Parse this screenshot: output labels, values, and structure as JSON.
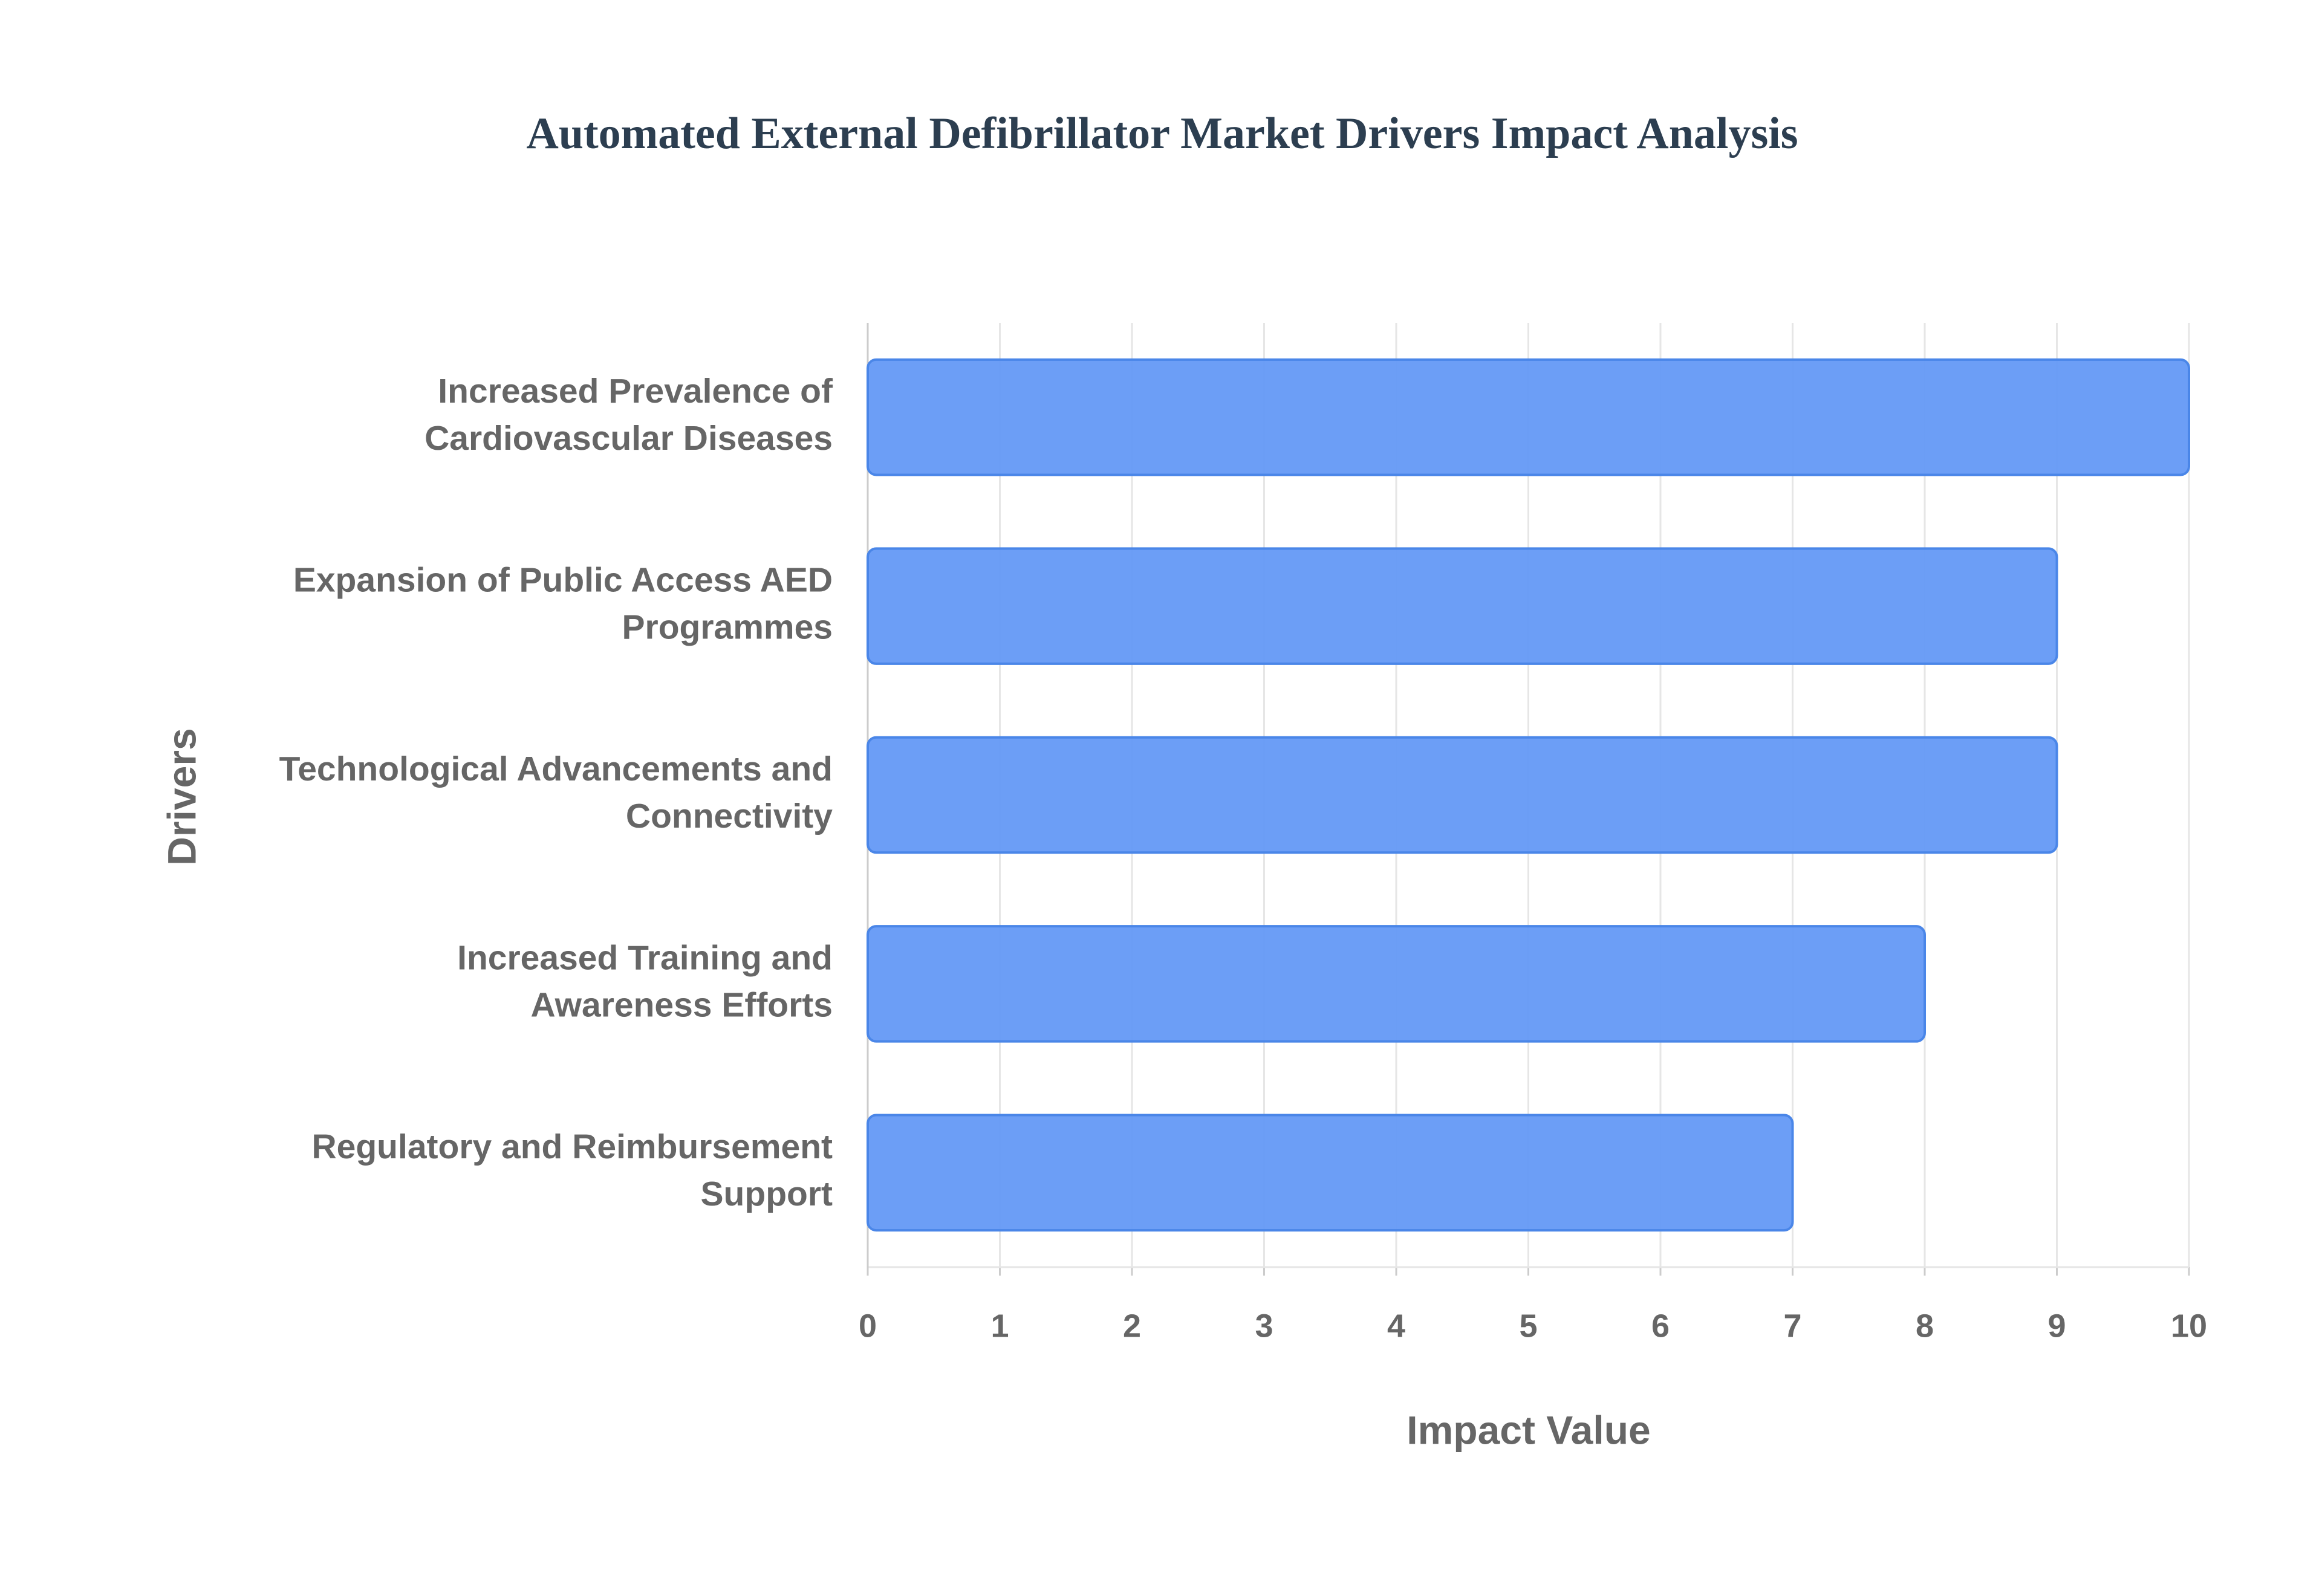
{
  "chart_data": {
    "type": "bar",
    "orientation": "horizontal",
    "title": "Automated External Defibrillator Market Drivers Impact Analysis",
    "x_label": "Impact Value",
    "y_label": "Drivers",
    "categories": [
      "Increased Prevalence of Cardiovascular Diseases",
      "Expansion of Public Access AED Programmes",
      "Technological Advancements and Connectivity",
      "Increased Training and Awareness Efforts",
      "Regulatory and Reimbursement Support"
    ],
    "values": [
      10,
      9,
      9,
      8,
      7
    ],
    "color": "#6499f6",
    "xlim": [
      0,
      10
    ],
    "xticks": [
      0,
      1,
      2,
      3,
      4,
      5,
      6,
      7,
      8,
      9,
      10
    ],
    "grid": true
  }
}
